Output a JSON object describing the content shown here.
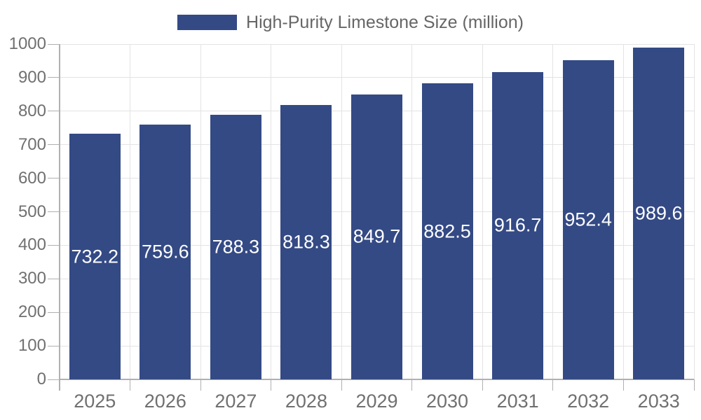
{
  "chart_data": {
    "type": "bar",
    "title": "High-Purity Limestone Size (million)",
    "legend_position": "top",
    "grid": true,
    "categories": [
      "2025",
      "2026",
      "2027",
      "2028",
      "2029",
      "2030",
      "2031",
      "2032",
      "2033"
    ],
    "values": [
      732.2,
      759.6,
      788.3,
      818.3,
      849.7,
      882.5,
      916.7,
      952.4,
      989.6
    ],
    "xlabel": "",
    "ylabel": "",
    "ylim": [
      0,
      1000
    ],
    "ytick_interval": 100,
    "yticks": [
      0,
      100,
      200,
      300,
      400,
      500,
      600,
      700,
      800,
      900,
      1000
    ],
    "colors": {
      "bar": "#344a85",
      "bar_label": "#ffffff",
      "axis_label": "#707070",
      "legend_text": "#666666",
      "grid": "#e3e3e3",
      "axis": "#b0b0b0"
    }
  }
}
